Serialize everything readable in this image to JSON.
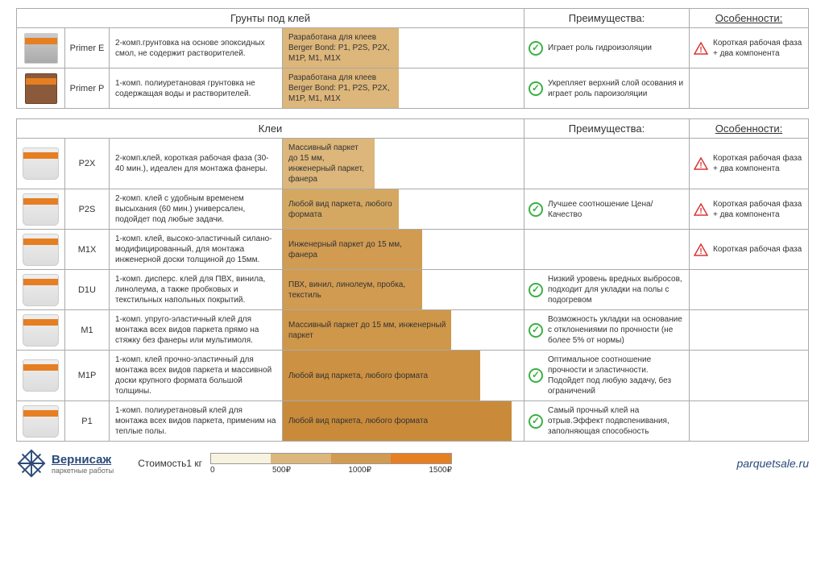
{
  "colors": {
    "border": "#aaaaaa",
    "scale": [
      "#f7f3e0",
      "#dcb67a",
      "#d19b52",
      "#e67e22"
    ],
    "check": "#3cb043",
    "warn": "#d33333"
  },
  "sections": [
    {
      "title": "Грунты под клей",
      "adv_header": "Преимущества:",
      "feat_header": "Особенности:",
      "rows": [
        {
          "img_type": "tin",
          "name": "Primer E",
          "desc": "2-комп.грунтовка на основе эпоксидных смол, не содержит растворителей.",
          "usage": "Разработана для клеев Berger Bond:  P1, P2S, P2X, M1P,  M1, M1X",
          "usage_color": "#dcb67a",
          "usage_width_pct": 48,
          "adv": "Играет роль гидроизоляции",
          "feat": "Короткая рабочая фаза + два компонента"
        },
        {
          "img_type": "can",
          "name": "Primer P",
          "desc": "1-комп. полиуретановая грунтовка не содержащая воды и растворителей.",
          "usage": "Разработана для клеев Berger Bond:  P1, P2S, P2X, M1P,  M1, M1X",
          "usage_color": "#dcb67a",
          "usage_width_pct": 48,
          "adv": "Укрепляет верхний слой осования и играет роль пароизоляции",
          "feat": ""
        }
      ]
    },
    {
      "title": "Клеи",
      "adv_header": "Преимущества:",
      "feat_header": "Особенности:",
      "rows": [
        {
          "img_type": "bucket",
          "name": "P2X",
          "desc": "2-комп.клей, короткая рабочая фаза (30-40 мин.), идеален для монтажа фанеры.",
          "usage": "Массивный паркет до 15 мм, инженерный паркет, фанера",
          "usage_color": "#dcb67a",
          "usage_width_pct": 38,
          "adv": "",
          "feat": "Короткая рабочая фаза + два компонента"
        },
        {
          "img_type": "bucket",
          "name": "P2S",
          "desc": "2-комп. клей с удобным временем высыхания (60 мин.) универсален, подойдет под любые задачи.",
          "usage": "Любой вид паркета, любого формата",
          "usage_color": "#d5a862",
          "usage_width_pct": 48,
          "adv": "Лучшее соотношение Цена/Качество",
          "feat": "Короткая рабочая фаза + два компонента"
        },
        {
          "img_type": "bucket",
          "name": "M1X",
          "desc": "1-комп. клей, высоко-эластичный силано-модифицированный, для монтажа инженерной доски толщиной до 15мм.",
          "usage": "Инженерный паркет до 15 мм, фанера",
          "usage_color": "#d19b52",
          "usage_width_pct": 58,
          "adv": "",
          "feat": "Короткая рабочая фаза"
        },
        {
          "img_type": "bucket",
          "name": "D1U",
          "desc": "1-комп. дисперс. клей для ПВХ, винила, линолеума, а также пробковых и текстильных напольных покрытий.",
          "usage": "ПВХ, винил, линолеум, пробка, текстиль",
          "usage_color": "#d19b52",
          "usage_width_pct": 58,
          "adv": "Низкий уровень вредных выбросов, подходит для укладки на полы с подогревом",
          "feat": ""
        },
        {
          "img_type": "bucket",
          "name": "M1",
          "desc": "1-комп. упруго-эластичный клей для монтажа всех видов паркета прямо на стяжку без фанеры или мультимоля.",
          "usage": "Массивный паркет до 15 мм, инженерный паркет",
          "usage_color": "#cf974a",
          "usage_width_pct": 70,
          "adv": "Возможность укладки на основание с отклонениями по прочности (не более 5% от нормы)",
          "feat": ""
        },
        {
          "img_type": "bucket",
          "name": "M1P",
          "desc": "1-комп. клей прочно-эластичный для монтажа всех видов паркета и массивной доски крупного формата большой толщины.",
          "usage": "Любой вид паркета, любого формата",
          "usage_color": "#cc9142",
          "usage_width_pct": 82,
          "adv": "Оптимальное соотношение прочности и эластичности. Подойдет под любую задачу, без ограничений",
          "feat": ""
        },
        {
          "img_type": "bucket",
          "name": "P1",
          "desc": "1-комп. полиуретановый клей для монтажа всех видов паркета, применим на теплые полы.",
          "usage": "Любой вид паркета, любого формата",
          "usage_color": "#c98b3a",
          "usage_width_pct": 95,
          "adv": "Самый прочный клей на отрыв.Эффект подвспенивания, заполняющая способность",
          "feat": ""
        }
      ]
    }
  ],
  "legend": {
    "brand_top": "Вернисаж",
    "brand_bot": "паркетные работы",
    "cost_label": "Стоимость1 кг",
    "ticks": [
      "0",
      "500₽",
      "1000₽",
      "1500₽"
    ],
    "site": "parquetsale.ru"
  }
}
